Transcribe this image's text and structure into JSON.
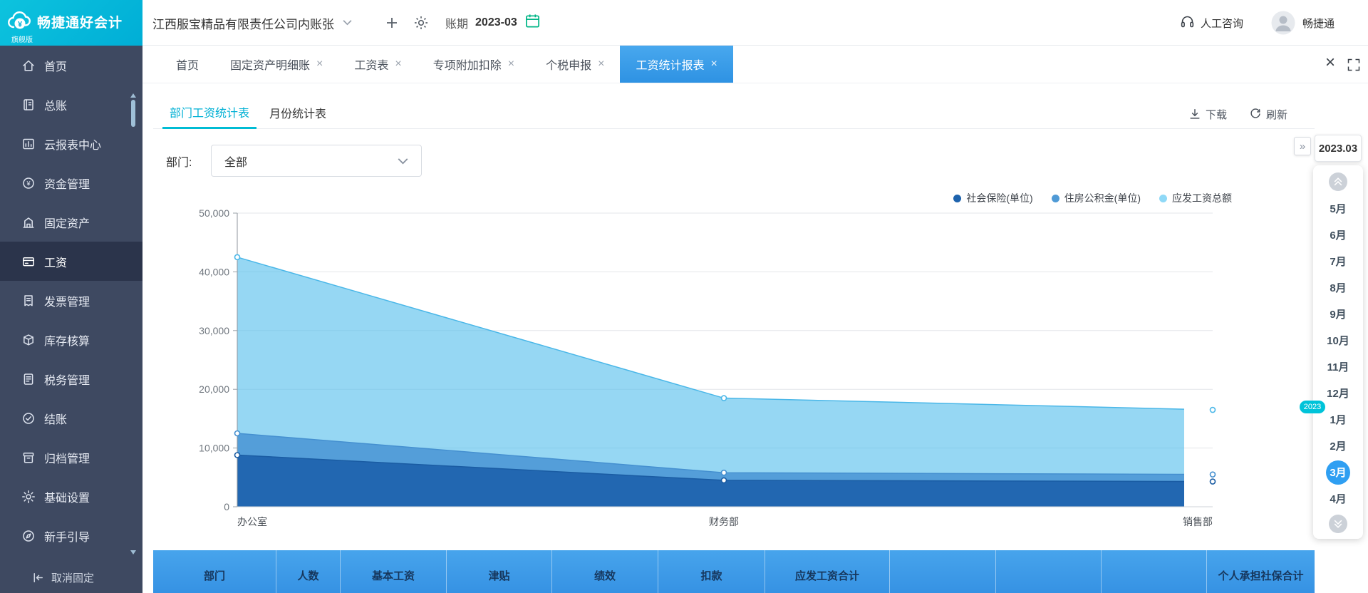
{
  "brand": {
    "name": "畅捷通好会计",
    "edition": "旗舰版",
    "accent": "#00b7d7"
  },
  "icons": {
    "close": "×",
    "collapse": "»"
  },
  "topbar": {
    "company": "江西服宝精品有限责任公司内账张",
    "period_label": "账期",
    "period_value": "2023-03",
    "support": "人工咨询",
    "user": "畅捷通"
  },
  "sidebar": {
    "items": [
      {
        "label": "首页"
      },
      {
        "label": "总账"
      },
      {
        "label": "云报表中心"
      },
      {
        "label": "资金管理"
      },
      {
        "label": "固定资产"
      },
      {
        "label": "工资"
      },
      {
        "label": "发票管理"
      },
      {
        "label": "库存核算"
      },
      {
        "label": "税务管理"
      },
      {
        "label": "结账"
      },
      {
        "label": "归档管理"
      },
      {
        "label": "基础设置"
      },
      {
        "label": "新手引导"
      }
    ],
    "unpin": "取消固定"
  },
  "tabs": [
    {
      "label": "首页",
      "closable": false
    },
    {
      "label": "固定资产明细账",
      "closable": true
    },
    {
      "label": "工资表",
      "closable": true
    },
    {
      "label": "专项附加扣除",
      "closable": true
    },
    {
      "label": "个税申报",
      "closable": true
    },
    {
      "label": "工资统计报表",
      "closable": true,
      "active": true
    }
  ],
  "report": {
    "subtabs": [
      "部门工资统计表",
      "月份统计表"
    ],
    "download": "下载",
    "refresh": "刷新",
    "filter_label": "部门:",
    "filter_value": "全部"
  },
  "chart_data": {
    "type": "area",
    "title": "",
    "categories": [
      "办公室",
      "财务部",
      "销售部"
    ],
    "series": [
      {
        "name": "社会保险(单位)",
        "values": [
          8800,
          4500,
          4300
        ],
        "color": "#1e63ad",
        "line_color": "#1a5ca3"
      },
      {
        "name": "住房公积金(单位)",
        "values": [
          12500,
          5800,
          5500
        ],
        "color": "#4f9ad6",
        "line_color": "#4590d0"
      },
      {
        "name": "应发工资总额",
        "values": [
          42500,
          18500,
          16500
        ],
        "color": "#55bfec",
        "line_color": "#4ab7e8",
        "legend_color": "#8fd9f7",
        "fill_opacity": 0.62
      }
    ],
    "ylim": [
      0,
      50000
    ],
    "y_ticks": [
      "0",
      "10,000",
      "20,000",
      "30,000",
      "40,000",
      "50,000"
    ],
    "grid": true,
    "legend_position": "top-right"
  },
  "table": {
    "columns": [
      "部门",
      "人数",
      "基本工资",
      "津贴",
      "绩效",
      "扣款",
      "应发工资合计",
      "个人承担社保合计"
    ]
  },
  "calendar": {
    "current": "2023.03",
    "year_badge": "2023",
    "months": [
      "5月",
      "6月",
      "7月",
      "8月",
      "9月",
      "10月",
      "11月",
      "12月",
      "1月",
      "2月",
      "3月",
      "4月"
    ],
    "selected": "3月"
  }
}
